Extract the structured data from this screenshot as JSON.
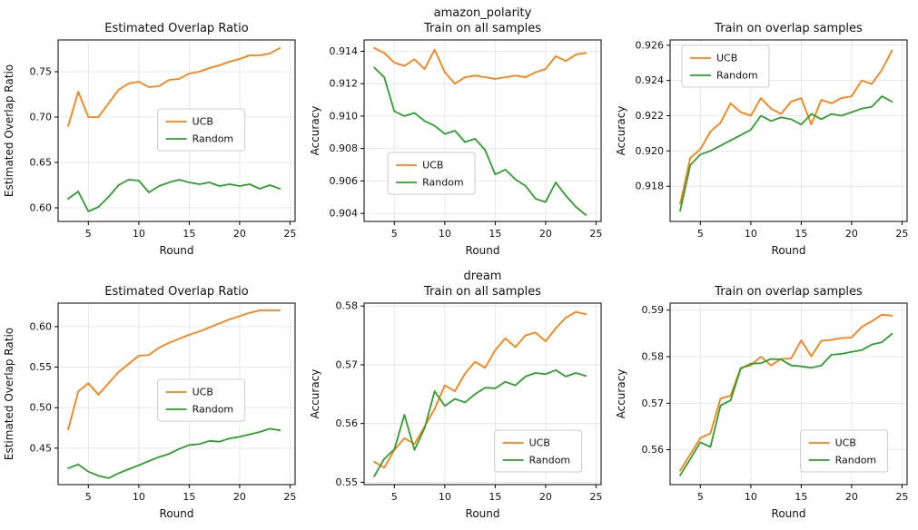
{
  "style": {
    "ucb_color": "#ff7f0e",
    "random_color": "#2ca02c",
    "grid_color": "#e3e3e3",
    "spine_color": "#000000",
    "legend_border_color": "#cccccc",
    "background": "#ffffff"
  },
  "chart_data": [
    {
      "type": "line",
      "title_lines": [
        "Estimated Overlap Ratio"
      ],
      "xlabel": "Round",
      "ylabel": "Estimated Overlap Ratio",
      "xlim": [
        2,
        25.5
      ],
      "ylim": [
        0.585,
        0.785
      ],
      "xticks": {
        "values": [
          5,
          10,
          15,
          20,
          25
        ],
        "labels": [
          "5",
          "10",
          "15",
          "20",
          "25"
        ]
      },
      "yticks": {
        "values": [
          0.6,
          0.65,
          0.7,
          0.75
        ],
        "labels": [
          "0.60",
          "0.65",
          "0.70",
          "0.75"
        ]
      },
      "grid": true,
      "legend": {
        "x": 0.42,
        "y": 0.38,
        "entries": [
          "UCB",
          "Random"
        ]
      },
      "x": [
        3,
        4,
        5,
        6,
        7,
        8,
        9,
        10,
        11,
        12,
        13,
        14,
        15,
        16,
        17,
        18,
        19,
        20,
        21,
        22,
        23,
        24
      ],
      "series": [
        {
          "name": "UCB",
          "color": "#ff7f0e",
          "values": [
            0.69,
            0.728,
            0.7,
            0.7,
            0.715,
            0.73,
            0.737,
            0.739,
            0.733,
            0.734,
            0.741,
            0.742,
            0.748,
            0.75,
            0.754,
            0.757,
            0.761,
            0.764,
            0.768,
            0.768,
            0.77,
            0.776
          ]
        },
        {
          "name": "Random",
          "color": "#2ca02c",
          "values": [
            0.61,
            0.618,
            0.596,
            0.601,
            0.612,
            0.625,
            0.631,
            0.63,
            0.617,
            0.624,
            0.628,
            0.631,
            0.628,
            0.626,
            0.628,
            0.624,
            0.626,
            0.624,
            0.626,
            0.621,
            0.625,
            0.621
          ]
        }
      ]
    },
    {
      "type": "line",
      "title_lines": [
        "amazon_polarity",
        "Train on all samples"
      ],
      "xlabel": "Round",
      "ylabel": "Accuracy",
      "xlim": [
        2,
        25.5
      ],
      "ylim": [
        0.9035,
        0.9147
      ],
      "xticks": {
        "values": [
          5,
          10,
          15,
          20,
          25
        ],
        "labels": [
          "5",
          "10",
          "15",
          "20",
          "25"
        ]
      },
      "yticks": {
        "values": [
          0.904,
          0.906,
          0.908,
          0.91,
          0.912,
          0.914
        ],
        "labels": [
          "0.904",
          "0.906",
          "0.908",
          "0.910",
          "0.912",
          "0.914"
        ]
      },
      "grid": true,
      "legend": {
        "x": 0.1,
        "y": 0.62,
        "entries": [
          "UCB",
          "Random"
        ]
      },
      "x": [
        3,
        4,
        5,
        6,
        7,
        8,
        9,
        10,
        11,
        12,
        13,
        14,
        15,
        16,
        17,
        18,
        19,
        20,
        21,
        22,
        23,
        24
      ],
      "series": [
        {
          "name": "UCB",
          "color": "#ff7f0e",
          "values": [
            0.9142,
            0.9139,
            0.9133,
            0.9131,
            0.9135,
            0.9129,
            0.9141,
            0.9127,
            0.912,
            0.9124,
            0.9125,
            0.9124,
            0.9123,
            0.9124,
            0.9125,
            0.9124,
            0.9127,
            0.9129,
            0.9137,
            0.9134,
            0.9138,
            0.9139
          ]
        },
        {
          "name": "Random",
          "color": "#2ca02c",
          "values": [
            0.913,
            0.9124,
            0.9103,
            0.91,
            0.9102,
            0.9097,
            0.9094,
            0.9089,
            0.9091,
            0.9084,
            0.9086,
            0.9079,
            0.9064,
            0.9067,
            0.9061,
            0.9057,
            0.9049,
            0.9047,
            0.9059,
            0.9051,
            0.9044,
            0.9039
          ]
        }
      ]
    },
    {
      "type": "line",
      "title_lines": [
        "Train on overlap samples"
      ],
      "xlabel": "Round",
      "ylabel": "Accuracy",
      "xlim": [
        2,
        25.5
      ],
      "ylim": [
        0.916,
        0.9263
      ],
      "xticks": {
        "values": [
          5,
          10,
          15,
          20,
          25
        ],
        "labels": [
          "5",
          "10",
          "15",
          "20",
          "25"
        ]
      },
      "yticks": {
        "values": [
          0.918,
          0.92,
          0.922,
          0.924,
          0.926
        ],
        "labels": [
          "0.918",
          "0.920",
          "0.922",
          "0.924",
          "0.926"
        ]
      },
      "grid": true,
      "legend": {
        "x": 0.05,
        "y": 0.03,
        "entries": [
          "UCB",
          "Random"
        ]
      },
      "x": [
        3,
        4,
        5,
        6,
        7,
        8,
        9,
        10,
        11,
        12,
        13,
        14,
        15,
        16,
        17,
        18,
        19,
        20,
        21,
        22,
        23,
        24
      ],
      "series": [
        {
          "name": "UCB",
          "color": "#ff7f0e",
          "values": [
            0.917,
            0.9196,
            0.9201,
            0.9211,
            0.9216,
            0.9227,
            0.9222,
            0.922,
            0.923,
            0.9224,
            0.9221,
            0.9228,
            0.923,
            0.9215,
            0.9229,
            0.9227,
            0.923,
            0.9231,
            0.924,
            0.9238,
            0.9246,
            0.9257
          ]
        },
        {
          "name": "Random",
          "color": "#2ca02c",
          "values": [
            0.9166,
            0.9192,
            0.9198,
            0.92,
            0.9203,
            0.9206,
            0.9209,
            0.9212,
            0.922,
            0.9217,
            0.9219,
            0.9218,
            0.9215,
            0.9221,
            0.9218,
            0.9221,
            0.922,
            0.9222,
            0.9224,
            0.9225,
            0.9231,
            0.9228
          ]
        }
      ]
    },
    {
      "type": "line",
      "title_lines": [
        "Estimated Overlap Ratio"
      ],
      "xlabel": "Round",
      "ylabel": "Estimated Overlap Ratio",
      "xlim": [
        2,
        25.5
      ],
      "ylim": [
        0.405,
        0.629
      ],
      "xticks": {
        "values": [
          5,
          10,
          15,
          20,
          25
        ],
        "labels": [
          "5",
          "10",
          "15",
          "20",
          "25"
        ]
      },
      "yticks": {
        "values": [
          0.45,
          0.5,
          0.55,
          0.6
        ],
        "labels": [
          "0.45",
          "0.50",
          "0.55",
          "0.60"
        ]
      },
      "grid": true,
      "legend": {
        "x": 0.42,
        "y": 0.42,
        "entries": [
          "UCB",
          "Random"
        ]
      },
      "x": [
        3,
        4,
        5,
        6,
        7,
        8,
        9,
        10,
        11,
        12,
        13,
        14,
        15,
        16,
        17,
        18,
        19,
        20,
        21,
        22,
        23,
        24
      ],
      "series": [
        {
          "name": "UCB",
          "color": "#ff7f0e",
          "values": [
            0.473,
            0.52,
            0.53,
            0.516,
            0.53,
            0.544,
            0.554,
            0.564,
            0.565,
            0.574,
            0.58,
            0.585,
            0.59,
            0.594,
            0.599,
            0.604,
            0.609,
            0.613,
            0.617,
            0.62,
            0.62,
            0.62
          ]
        },
        {
          "name": "Random",
          "color": "#2ca02c",
          "values": [
            0.425,
            0.43,
            0.421,
            0.416,
            0.413,
            0.419,
            0.424,
            0.429,
            0.434,
            0.439,
            0.443,
            0.449,
            0.454,
            0.455,
            0.459,
            0.458,
            0.462,
            0.464,
            0.467,
            0.47,
            0.474,
            0.472
          ]
        }
      ]
    },
    {
      "type": "line",
      "title_lines": [
        "dream",
        "Train on all samples"
      ],
      "xlabel": "Round",
      "ylabel": "Accuracy",
      "xlim": [
        2,
        25.5
      ],
      "ylim": [
        0.5496,
        0.5805
      ],
      "xticks": {
        "values": [
          5,
          10,
          15,
          20,
          25
        ],
        "labels": [
          "5",
          "10",
          "15",
          "20",
          "25"
        ]
      },
      "yticks": {
        "values": [
          0.55,
          0.56,
          0.57,
          0.58
        ],
        "labels": [
          "0.55",
          "0.56",
          "0.57",
          "0.58"
        ]
      },
      "grid": true,
      "legend": {
        "x": 0.55,
        "y": 0.7,
        "entries": [
          "UCB",
          "Random"
        ]
      },
      "x": [
        3,
        4,
        5,
        6,
        7,
        8,
        9,
        10,
        11,
        12,
        13,
        14,
        15,
        16,
        17,
        18,
        19,
        20,
        21,
        22,
        23,
        24
      ],
      "series": [
        {
          "name": "UCB",
          "color": "#ff7f0e",
          "values": [
            0.5535,
            0.5525,
            0.5555,
            0.5575,
            0.5565,
            0.5595,
            0.5625,
            0.5665,
            0.5655,
            0.5685,
            0.5705,
            0.5695,
            0.5725,
            0.5745,
            0.573,
            0.575,
            0.5755,
            0.574,
            0.5762,
            0.578,
            0.579,
            0.5786
          ]
        },
        {
          "name": "Random",
          "color": "#2ca02c",
          "values": [
            0.551,
            0.554,
            0.5556,
            0.5615,
            0.5555,
            0.5592,
            0.5655,
            0.563,
            0.5642,
            0.5636,
            0.565,
            0.5661,
            0.566,
            0.5671,
            0.5665,
            0.568,
            0.5686,
            0.5684,
            0.5691,
            0.568,
            0.5686,
            0.5681
          ]
        }
      ]
    },
    {
      "type": "line",
      "title_lines": [
        "Train on overlap samples"
      ],
      "xlabel": "Round",
      "ylabel": "Accuracy",
      "xlim": [
        2,
        25.5
      ],
      "ylim": [
        0.5525,
        0.5915
      ],
      "xticks": {
        "values": [
          5,
          10,
          15,
          20,
          25
        ],
        "labels": [
          "5",
          "10",
          "15",
          "20",
          "25"
        ]
      },
      "yticks": {
        "values": [
          0.56,
          0.57,
          0.58,
          0.59
        ],
        "labels": [
          "0.56",
          "0.57",
          "0.58",
          "0.59"
        ]
      },
      "grid": true,
      "legend": {
        "x": 0.55,
        "y": 0.7,
        "entries": [
          "UCB",
          "Random"
        ]
      },
      "x": [
        3,
        4,
        5,
        6,
        7,
        8,
        9,
        10,
        11,
        12,
        13,
        14,
        15,
        16,
        17,
        18,
        19,
        20,
        21,
        22,
        23,
        24
      ],
      "series": [
        {
          "name": "UCB",
          "color": "#ff7f0e",
          "values": [
            0.5555,
            0.559,
            0.5625,
            0.5635,
            0.571,
            0.5716,
            0.5776,
            0.5781,
            0.58,
            0.5781,
            0.5795,
            0.5796,
            0.5835,
            0.5801,
            0.5834,
            0.5836,
            0.584,
            0.5841,
            0.5864,
            0.5876,
            0.589,
            0.5888
          ]
        },
        {
          "name": "Random",
          "color": "#2ca02c",
          "values": [
            0.5545,
            0.558,
            0.5616,
            0.5606,
            0.5695,
            0.5706,
            0.5774,
            0.5785,
            0.5786,
            0.5795,
            0.5794,
            0.5781,
            0.5779,
            0.5776,
            0.5781,
            0.5804,
            0.5806,
            0.581,
            0.5814,
            0.5826,
            0.5831,
            0.5849
          ]
        }
      ]
    }
  ]
}
